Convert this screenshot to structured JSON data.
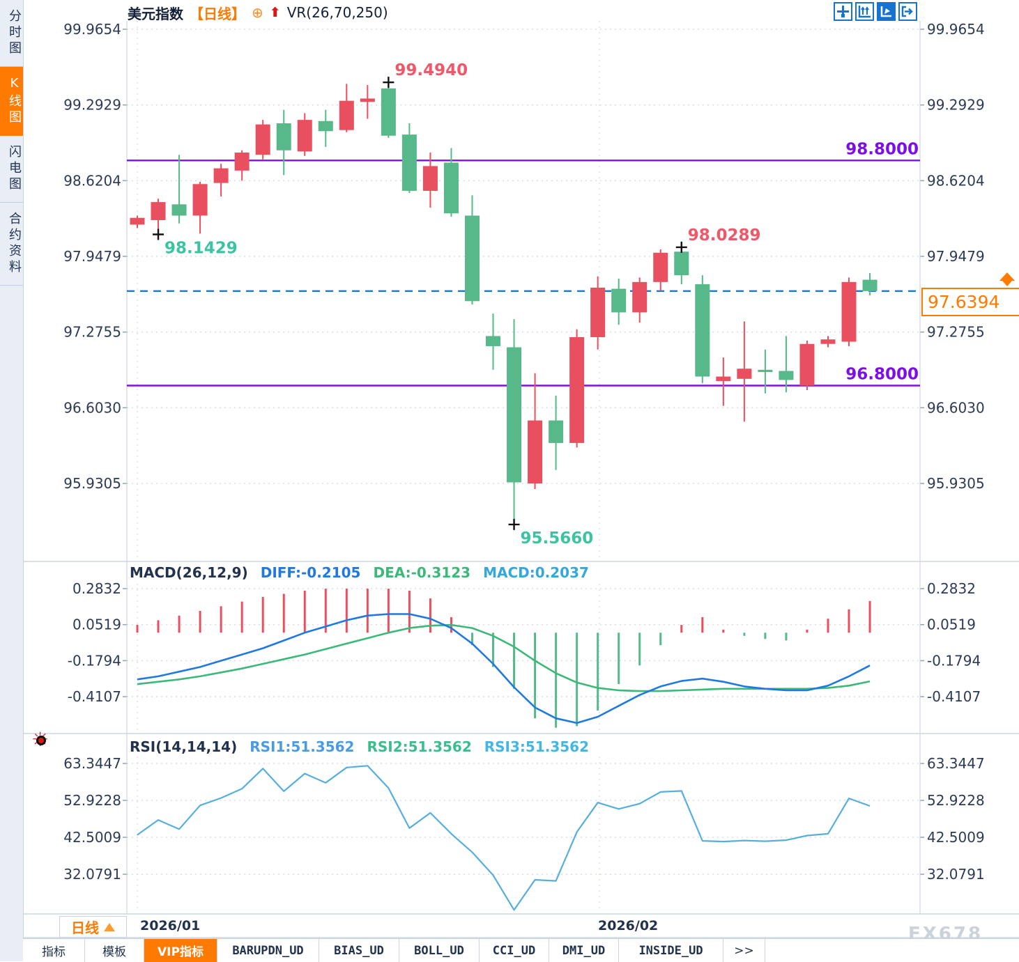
{
  "app": {
    "watermark": "FX678"
  },
  "sidebar": {
    "items": [
      {
        "label": "分时图",
        "active": false
      },
      {
        "label": "K线图",
        "active": true
      },
      {
        "label": "闪电图",
        "active": false
      },
      {
        "label": "合约资料",
        "active": false
      }
    ]
  },
  "titlebar": {
    "symbol": "美元指数",
    "period": "【日线】",
    "plus_icon": "⊕",
    "up_arrow_icon": "⬆",
    "indicator": "VR(26,70,250)"
  },
  "toolbar": {
    "icons": [
      {
        "name": "pan-crosshair-icon",
        "active": false
      },
      {
        "name": "axis-range-icon",
        "active": false
      },
      {
        "name": "pointer-axis-icon",
        "active": true
      },
      {
        "name": "exit-right-icon",
        "active": false
      }
    ]
  },
  "colors": {
    "up": "#e8505f",
    "down": "#57b98a",
    "support_line": "#7d0ee8",
    "current_price_line": "#1778e8",
    "accent_orange": "#ff7a00",
    "diff_line": "#1f79e0",
    "dea_line": "#3cb878",
    "rsi_line": "#55aede",
    "annotation_red": "#ef5868",
    "annotation_green": "#3bc4a2"
  },
  "macd_header": [
    {
      "text": "MACD(26,12,9)",
      "color": "#22324e"
    },
    {
      "text": "DIFF:-0.2105",
      "color": "#1f79e0"
    },
    {
      "text": "DEA:-0.3123",
      "color": "#3cb878"
    },
    {
      "text": "MACD:0.2037",
      "color": "#35a7dd"
    }
  ],
  "rsi_header": [
    {
      "text": "RSI(14,14,14)",
      "color": "#22324e"
    },
    {
      "text": "RSI1:51.3562",
      "color": "#4a9be4"
    },
    {
      "text": "RSI2:51.3562",
      "color": "#3cbd8d"
    },
    {
      "text": "RSI3:51.3562",
      "color": "#44b6e2"
    }
  ],
  "last_price": {
    "value": "97.6394"
  },
  "bottom": {
    "period_box": "日线",
    "x_labels": [
      "2026/01",
      "2026/02"
    ],
    "tabs": [
      {
        "label": "指标",
        "active": false,
        "mono": false
      },
      {
        "label": "模板",
        "active": false,
        "mono": false
      },
      {
        "label": "VIP指标",
        "active": true,
        "mono": false
      },
      {
        "label": "BARUPDN_UD",
        "active": false,
        "mono": true
      },
      {
        "label": "BIAS_UD",
        "active": false,
        "mono": true
      },
      {
        "label": "BOLL_UD",
        "active": false,
        "mono": true
      },
      {
        "label": "CCI_UD",
        "active": false,
        "mono": true
      },
      {
        "label": "DMI_UD",
        "active": false,
        "mono": true
      },
      {
        "label": "INSIDE_UD",
        "active": false,
        "mono": true
      },
      {
        "label": ">>",
        "active": false,
        "mono": false
      }
    ]
  },
  "chart_data": [
    {
      "type": "candlestick",
      "title": "美元指数 日线",
      "y_axis": [
        "99.9654",
        "99.2929",
        "98.6204",
        "97.9479",
        "97.2755",
        "96.6030",
        "95.9305"
      ],
      "x_labels": [
        "2026/01",
        "2026/02"
      ],
      "up_color": "#e8505f",
      "down_color": "#57b98a",
      "candles": [
        [
          98.23,
          98.29,
          98.31,
          98.2
        ],
        [
          98.27,
          98.43,
          98.46,
          98.143
        ],
        [
          98.41,
          98.31,
          98.85,
          98.24
        ],
        [
          98.31,
          98.59,
          98.61,
          98.15
        ],
        [
          98.6,
          98.73,
          98.77,
          98.48
        ],
        [
          98.71,
          98.87,
          98.89,
          98.62
        ],
        [
          98.85,
          99.12,
          99.16,
          98.81
        ],
        [
          99.13,
          98.89,
          99.25,
          98.67
        ],
        [
          98.88,
          99.16,
          99.22,
          98.84
        ],
        [
          99.15,
          99.06,
          99.25,
          98.92
        ],
        [
          99.07,
          99.33,
          99.48,
          99.05
        ],
        [
          99.32,
          99.35,
          99.47,
          99.17
        ],
        [
          99.44,
          99.02,
          99.494,
          99.0
        ],
        [
          99.03,
          98.53,
          99.13,
          98.51
        ],
        [
          98.53,
          98.75,
          98.87,
          98.38
        ],
        [
          98.78,
          98.33,
          98.91,
          98.3
        ],
        [
          98.31,
          97.55,
          98.49,
          97.52
        ],
        [
          97.24,
          97.15,
          97.44,
          96.94
        ],
        [
          97.14,
          95.94,
          97.39,
          95.566
        ],
        [
          95.93,
          96.49,
          96.91,
          95.88
        ],
        [
          96.49,
          96.29,
          96.71,
          96.05
        ],
        [
          96.29,
          97.23,
          97.3,
          96.25
        ],
        [
          97.23,
          97.67,
          97.77,
          97.12
        ],
        [
          97.66,
          97.45,
          97.75,
          97.34
        ],
        [
          97.45,
          97.72,
          97.76,
          97.36
        ],
        [
          97.72,
          97.98,
          98.01,
          97.64
        ],
        [
          97.99,
          97.78,
          98.0289,
          97.7
        ],
        [
          97.7,
          96.88,
          97.78,
          96.82
        ],
        [
          96.84,
          96.88,
          97.05,
          96.62
        ],
        [
          96.86,
          96.95,
          97.37,
          96.48
        ],
        [
          96.94,
          96.92,
          97.12,
          96.73
        ],
        [
          96.93,
          96.85,
          97.24,
          96.74
        ],
        [
          96.8,
          97.17,
          97.2,
          96.76
        ],
        [
          97.17,
          97.21,
          97.24,
          97.14
        ],
        [
          97.19,
          97.72,
          97.76,
          97.15
        ],
        [
          97.74,
          97.6394,
          97.8,
          97.6
        ]
      ],
      "hlines": [
        {
          "label": "98.8000",
          "price": 98.8,
          "style": "solid",
          "color": "#7d0ee8"
        },
        {
          "label": "96.8000",
          "price": 96.8,
          "style": "solid",
          "color": "#7d0ee8"
        },
        {
          "label": "",
          "price": 97.6394,
          "style": "dashed",
          "color": "#1778e8"
        }
      ],
      "annotations": [
        {
          "text": "99.4940",
          "candle": 13,
          "price": 99.494,
          "pos": "above",
          "color": "#ef5868"
        },
        {
          "text": "98.1429",
          "candle": 2,
          "price": 98.1429,
          "pos": "below",
          "color": "#3bc4a2"
        },
        {
          "text": "98.0289",
          "candle": 27,
          "price": 98.0289,
          "pos": "above",
          "color": "#ef5868"
        },
        {
          "text": "95.5660",
          "candle": 19,
          "price": 95.566,
          "pos": "below",
          "color": "#3bc4a2"
        }
      ],
      "last_price": "97.6394"
    },
    {
      "type": "bar",
      "name": "MACD(26,12,9)",
      "y_axis": [
        "0.2832",
        "0.0519",
        "-0.1794",
        "-0.4107"
      ],
      "histogram": [
        0.05,
        0.08,
        0.11,
        0.14,
        0.17,
        0.2,
        0.23,
        0.25,
        0.27,
        0.283,
        0.283,
        0.283,
        0.283,
        0.27,
        0.22,
        0.1,
        -0.08,
        -0.22,
        -0.36,
        -0.55,
        -0.61,
        -0.6,
        -0.5,
        -0.33,
        -0.21,
        -0.08,
        0.05,
        0.1,
        0.02,
        -0.02,
        -0.04,
        -0.05,
        0.02,
        0.09,
        0.15,
        0.2037
      ],
      "series": [
        {
          "name": "DIFF",
          "color": "#1f79e0",
          "values": [
            -0.3,
            -0.28,
            -0.25,
            -0.22,
            -0.18,
            -0.14,
            -0.1,
            -0.05,
            0.0,
            0.04,
            0.08,
            0.11,
            0.12,
            0.12,
            0.09,
            0.03,
            -0.07,
            -0.2,
            -0.35,
            -0.48,
            -0.55,
            -0.58,
            -0.54,
            -0.47,
            -0.4,
            -0.345,
            -0.31,
            -0.295,
            -0.315,
            -0.345,
            -0.36,
            -0.37,
            -0.37,
            -0.34,
            -0.28,
            -0.2105
          ]
        },
        {
          "name": "DEA",
          "color": "#3cb878",
          "values": [
            -0.33,
            -0.315,
            -0.3,
            -0.28,
            -0.255,
            -0.23,
            -0.2,
            -0.17,
            -0.14,
            -0.105,
            -0.07,
            -0.035,
            0.0,
            0.03,
            0.045,
            0.05,
            0.03,
            -0.02,
            -0.09,
            -0.18,
            -0.26,
            -0.32,
            -0.355,
            -0.37,
            -0.375,
            -0.375,
            -0.37,
            -0.365,
            -0.36,
            -0.36,
            -0.36,
            -0.36,
            -0.36,
            -0.355,
            -0.34,
            -0.3123
          ]
        }
      ],
      "readout": {
        "DIFF": "-0.2105",
        "DEA": "-0.3123",
        "MACD": "0.2037"
      }
    },
    {
      "type": "line",
      "name": "RSI(14,14,14)",
      "y_axis": [
        "63.3447",
        "52.9228",
        "42.5009",
        "32.0791"
      ],
      "series": [
        {
          "name": "RSI",
          "color": "#55aede",
          "values": [
            43.2,
            47.4,
            44.8,
            51.5,
            53.6,
            56.2,
            61.9,
            55.5,
            60.5,
            57.9,
            62.2,
            62.7,
            56.4,
            45.1,
            49.4,
            43.5,
            38.3,
            31.8,
            22.0,
            30.5,
            30.2,
            44.0,
            52.3,
            50.5,
            52.0,
            55.3,
            55.6,
            41.5,
            41.3,
            41.6,
            41.4,
            41.7,
            43.0,
            43.5,
            53.5,
            51.3562
          ]
        }
      ],
      "readout": {
        "RSI1": "51.3562",
        "RSI2": "51.3562",
        "RSI3": "51.3562"
      }
    }
  ]
}
